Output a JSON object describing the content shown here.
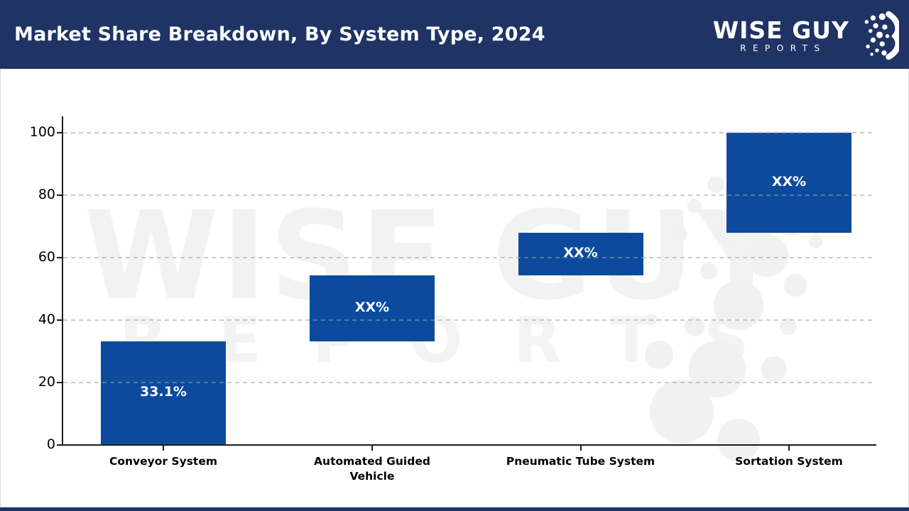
{
  "header": {
    "title": "Market Share Breakdown, By System Type, 2024"
  },
  "logo": {
    "name_top": "WISE GUY",
    "name_bottom": "REPORTS"
  },
  "watermark": {
    "line1": "WISE GUY",
    "line2": "REPORTS"
  },
  "chart_data": {
    "type": "bar",
    "subtype": "waterfall",
    "title": "Market Share Breakdown, By System Type, 2024",
    "categories": [
      "Conveyor System",
      "Automated Guided Vehicle",
      "Pneumatic Tube System",
      "Sortation System"
    ],
    "segments": [
      {
        "category": "Conveyor System",
        "start": 0,
        "end": 33.1,
        "label": "33.1%"
      },
      {
        "category": "Automated Guided Vehicle",
        "start": 33.1,
        "end": 54.3,
        "label": "XX%"
      },
      {
        "category": "Pneumatic Tube System",
        "start": 54.3,
        "end": 67.9,
        "label": "XX%"
      },
      {
        "category": "Sortation System",
        "start": 67.9,
        "end": 100,
        "label": "XX%"
      }
    ],
    "xlabel": "",
    "ylabel": "",
    "ylim": [
      0,
      100
    ],
    "yticks": [
      0,
      20,
      40,
      60,
      80,
      100
    ],
    "bar_color": "#0c4a9e",
    "grid": "horizontal dashed",
    "legend": "none",
    "value_label_color": "#ffffff"
  },
  "colors": {
    "header_bg": "#1f3364",
    "bar": "#0c4a9e",
    "axis": "#1c1c1c",
    "watermark": "#f2f2f2"
  }
}
